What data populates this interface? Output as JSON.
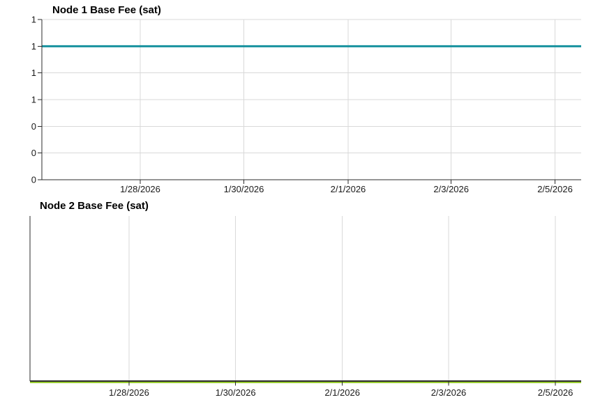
{
  "page": {
    "background_color": "#ffffff",
    "text_color": "#1a1a1a",
    "gridline_color": "#d9d9d9",
    "axis_color": "#2b2b2b"
  },
  "chart_data": [
    {
      "type": "line",
      "title": "Node 1 Base Fee (sat)",
      "x_tick_labels": [
        "1/28/2026",
        "1/30/2026",
        "2/1/2026",
        "2/3/2026",
        "2/5/2026"
      ],
      "y_tick_labels": [
        "1",
        "1",
        "1",
        "1",
        "0",
        "0",
        "0"
      ],
      "ylim": [
        0,
        1.2
      ],
      "grid": {
        "horizontal": true,
        "vertical": true
      },
      "legend": "none",
      "series": [
        {
          "name": "Node 1 Base Fee (sat)",
          "color": "#17929E",
          "constant_value": 1,
          "x": [
            "1/28/2026",
            "1/30/2026",
            "2/1/2026",
            "2/3/2026",
            "2/5/2026"
          ],
          "values": [
            1,
            1,
            1,
            1,
            1
          ]
        }
      ]
    },
    {
      "type": "line",
      "title": "Node 2 Base Fee (sat)",
      "x_tick_labels": [
        "1/28/2026",
        "1/30/2026",
        "2/1/2026",
        "2/3/2026",
        "2/5/2026"
      ],
      "y_tick_labels": [],
      "ylim": [
        0,
        1
      ],
      "grid": {
        "horizontal": false,
        "vertical": true
      },
      "legend": "none",
      "series": [
        {
          "name": "Node 2 Base Fee (sat)",
          "color": "#9ACD32",
          "constant_value": 0,
          "x": [
            "1/28/2026",
            "1/30/2026",
            "2/1/2026",
            "2/3/2026",
            "2/5/2026"
          ],
          "values": [
            0,
            0,
            0,
            0,
            0
          ]
        }
      ]
    }
  ]
}
